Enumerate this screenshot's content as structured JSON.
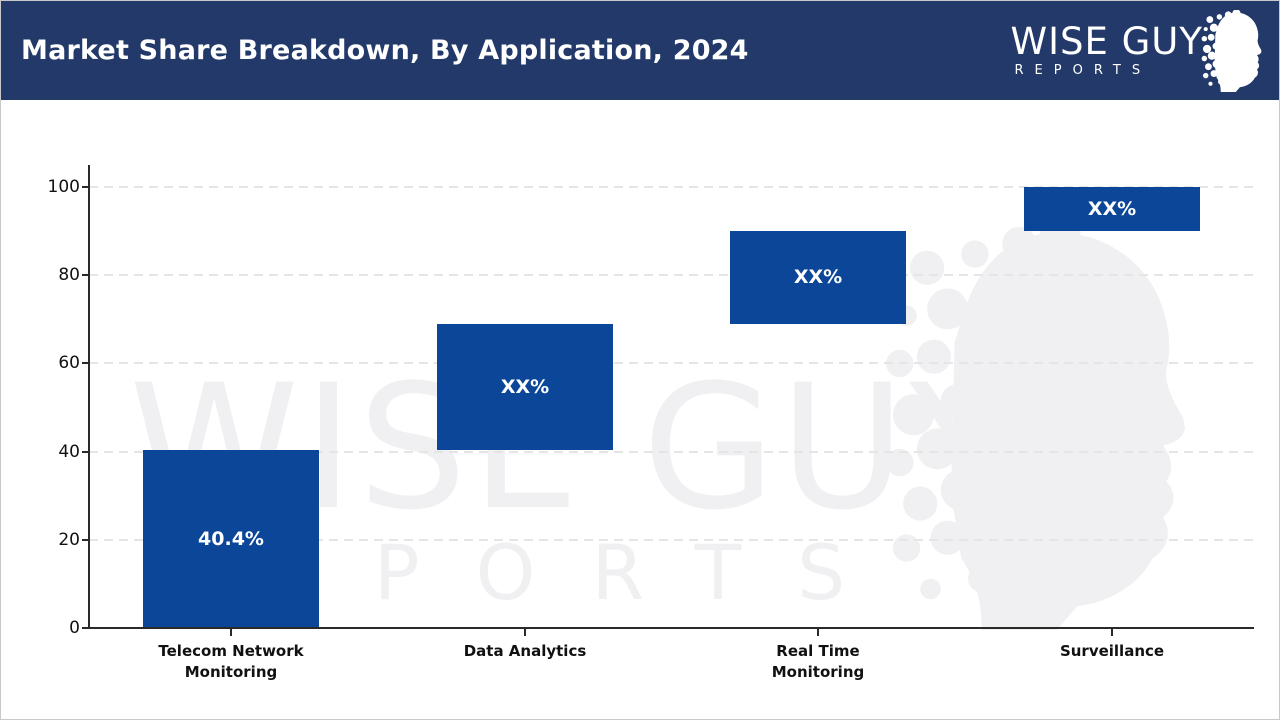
{
  "header": {
    "title": "Market Share Breakdown, By Application, 2024",
    "brand": {
      "line1": "WISE GUY",
      "line2": "REPORTS"
    }
  },
  "watermark": {
    "line1": "WISE GUY",
    "line2": "REPORTS"
  },
  "colors": {
    "header_bg": "#22396a",
    "bar": "#0b4699",
    "bar_label_text": "#ffffff",
    "grid": "#e5e5e5",
    "axis": "#2a2a2a",
    "watermark": "#f0f0f2"
  },
  "chart_data": {
    "type": "bar",
    "subtype": "waterfall",
    "title": "Market Share Breakdown, By Application, 2024",
    "categories": [
      "Telecom Network Monitoring",
      "Data Analytics",
      "Real Time Monitoring",
      "Surveillance"
    ],
    "series": [
      {
        "name": "Market Share",
        "ranges": [
          [
            0,
            40.4
          ],
          [
            40.4,
            69
          ],
          [
            69,
            90
          ],
          [
            90,
            100
          ]
        ],
        "labels": [
          "40.4%",
          "XX%",
          "XX%",
          "XX%"
        ]
      }
    ],
    "xlabel": "",
    "ylabel": "",
    "ylim": [
      0,
      100
    ],
    "yticks": [
      0,
      20,
      40,
      60,
      80,
      100
    ],
    "grid": "horizontal-dashed",
    "legend": false
  }
}
